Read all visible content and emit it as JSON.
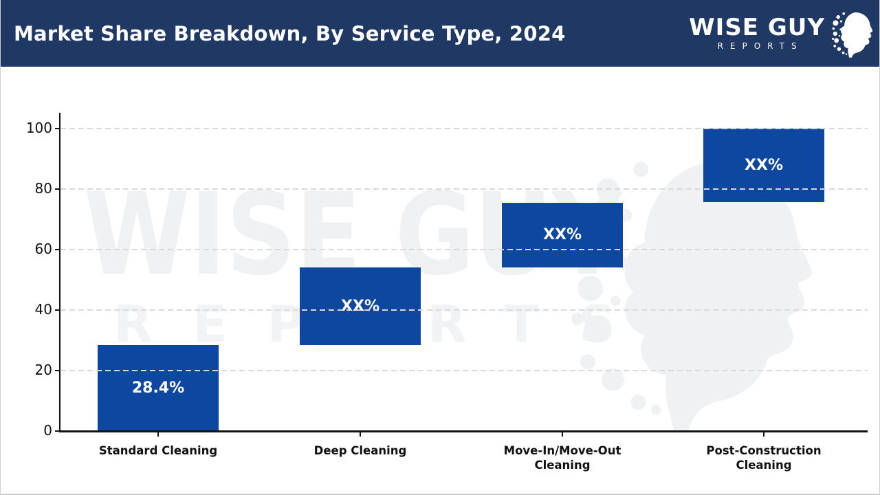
{
  "header": {
    "title": "Market Share Breakdown, By Service Type, 2024",
    "bg_color": "#1f3864",
    "logo_line1": "WISE GUY",
    "logo_line2": "REPORTS"
  },
  "watermark": {
    "line1": "WISE GUY",
    "line2": "REPORTS"
  },
  "chart_data": {
    "type": "bar",
    "subtype": "waterfall",
    "title": "Market Share Breakdown, By Service Type, 2024",
    "xlabel": "",
    "ylabel": "",
    "categories": [
      "Standard Cleaning",
      "Deep Cleaning",
      "Move-In/Move-Out\nCleaning",
      "Post-Construction\nCleaning"
    ],
    "segments": [
      {
        "category": "Standard Cleaning",
        "start": 0,
        "end": 28.4,
        "label": "28.4%"
      },
      {
        "category": "Deep Cleaning",
        "start": 28.4,
        "end": 54.1,
        "label": "XX%"
      },
      {
        "category": "Move-In/Move-Out Cleaning",
        "start": 54.2,
        "end": 75.5,
        "label": "XX%"
      },
      {
        "category": "Post-Construction Cleaning",
        "start": 75.6,
        "end": 100,
        "label": "XX%"
      }
    ],
    "yticks": [
      0,
      20,
      40,
      60,
      80,
      100
    ],
    "ylim": [
      0,
      105
    ],
    "grid": true,
    "legend": false,
    "bar_color": "#0d47a0",
    "bar_label_color": "#ffffff",
    "gridline_color": "#d9d9d9",
    "axis_color": "#111111"
  }
}
